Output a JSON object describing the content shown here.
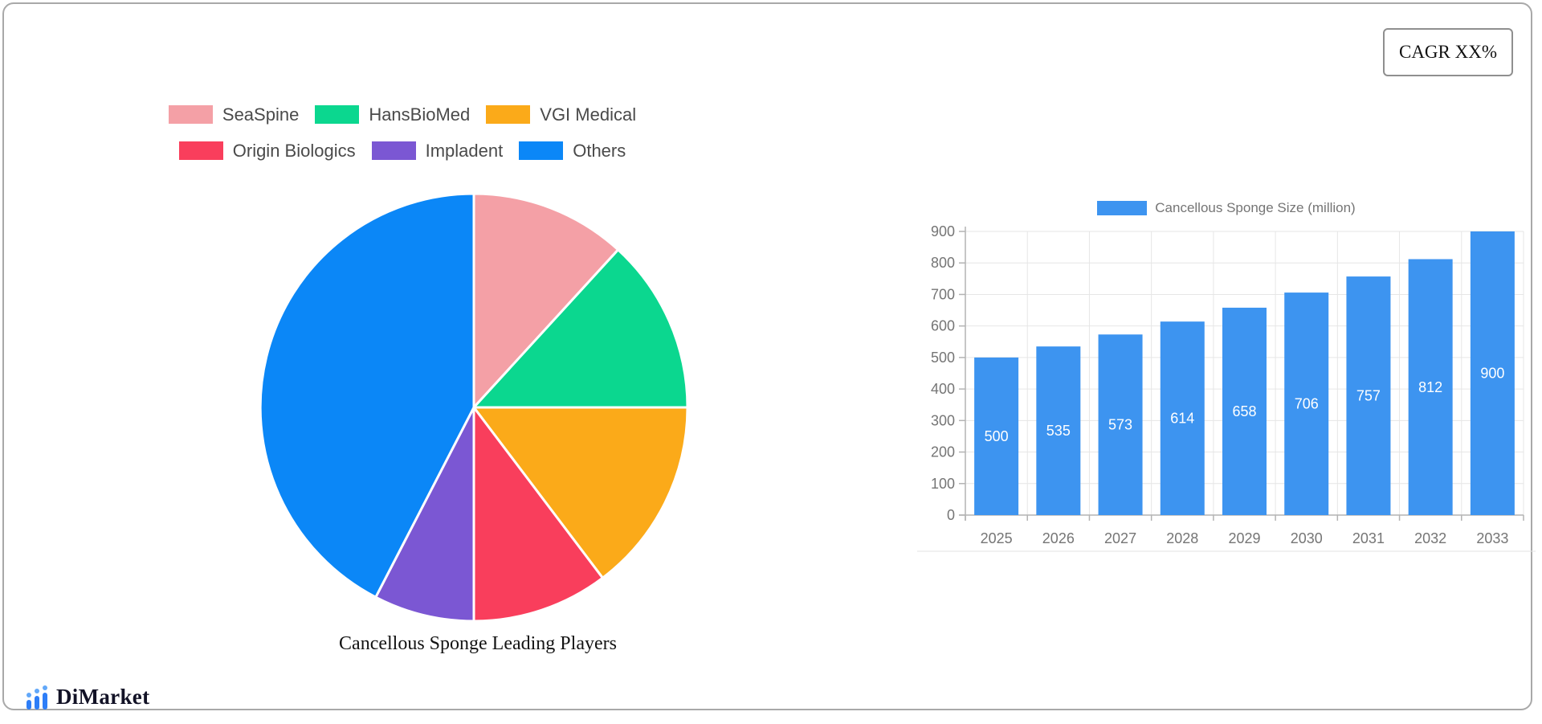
{
  "card": {
    "cagr_label": "CAGR XX%"
  },
  "brand": {
    "name": "DiMarket",
    "logo_icon": "bar-chart-icon",
    "logo_color": "#2e7ef7",
    "logo_dot_color": "#62a8f9"
  },
  "chart_data": [
    {
      "type": "pie",
      "title": "Cancellous Sponge Leading Players",
      "labels": [
        "SeaSpine",
        "HansBioMed",
        "VGI Medical",
        "Origin Biologics",
        "Impladent",
        "Others"
      ],
      "values": [
        11.8,
        13.2,
        14.7,
        10.3,
        7.6,
        42.4
      ],
      "unit": "percent-share-estimated",
      "colors": [
        "#f4a0a6",
        "#0bd78f",
        "#fbaa19",
        "#f93e5c",
        "#7b57d3",
        "#0b87f7"
      ],
      "legend_position": "top",
      "legend_rows": 2,
      "start_angle_deg": 0,
      "direction": "clockwise",
      "slice_border_color": "#ffffff"
    },
    {
      "type": "bar",
      "legend_label": "Cancellous Sponge Size (million)",
      "categories": [
        "2025",
        "2026",
        "2027",
        "2028",
        "2029",
        "2030",
        "2031",
        "2032",
        "2033"
      ],
      "values": [
        500,
        535,
        573,
        614,
        658,
        706,
        757,
        812,
        900
      ],
      "bar_color": "#3d94f0",
      "value_label_color": "#ffffff",
      "value_label_position": "inside-center",
      "ylim": [
        0,
        900
      ],
      "ytick_step": 100,
      "ytick_labels": [
        "0",
        "100",
        "200",
        "300",
        "400",
        "500",
        "600",
        "700",
        "800",
        "900"
      ],
      "grid": true,
      "legend_position": "top"
    }
  ]
}
